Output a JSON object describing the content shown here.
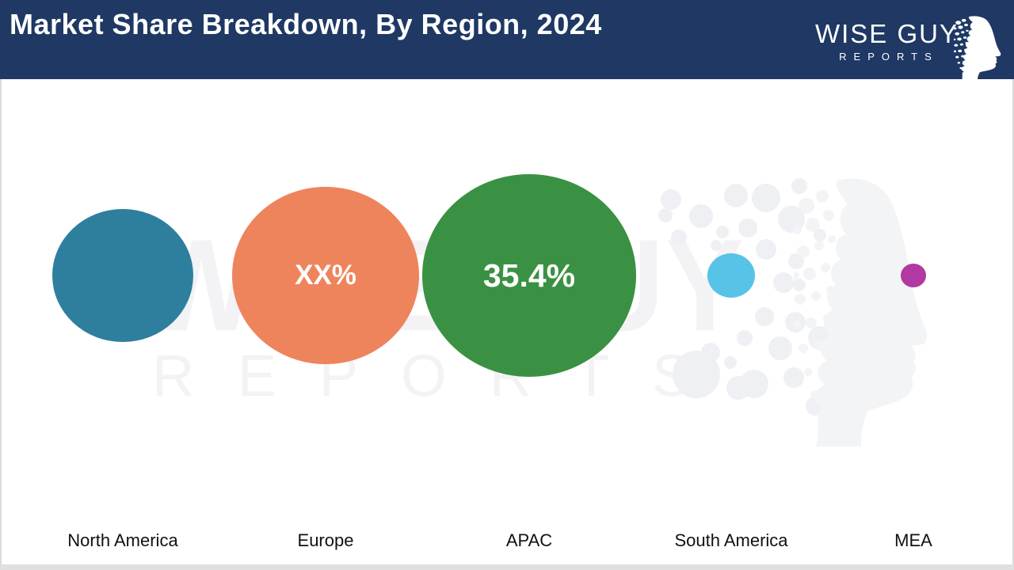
{
  "header": {
    "title": "Market Share Breakdown, By Region, 2024",
    "bg_color": "#1f3864",
    "logo": {
      "wordmark": "WISE GUY",
      "subtitle": "REPORTS"
    }
  },
  "watermark": {
    "line1": "WISE GUY",
    "line2": "REPORTS"
  },
  "chart_data": {
    "type": "bubble",
    "title": "Market Share Breakdown, By Region, 2024",
    "categories": [
      "North America",
      "Europe",
      "APAC",
      "South America",
      "MEA"
    ],
    "series": [
      {
        "name": "North America",
        "value_label": "",
        "share_pct": null,
        "color": "#2e7f9e",
        "radius_px": 89
      },
      {
        "name": "Europe",
        "value_label": "XX%",
        "share_pct": null,
        "color": "#ee845c",
        "radius_px": 118
      },
      {
        "name": "APAC",
        "value_label": "35.4%",
        "share_pct": 35.4,
        "color": "#3a9143",
        "radius_px": 135
      },
      {
        "name": "South America",
        "value_label": "",
        "share_pct": null,
        "color": "#57c3e6",
        "radius_px": 30
      },
      {
        "name": "MEA",
        "value_label": "",
        "share_pct": null,
        "color": "#b238a2",
        "radius_px": 16
      }
    ],
    "legend_position": "bottom",
    "label_color": "#111111"
  }
}
